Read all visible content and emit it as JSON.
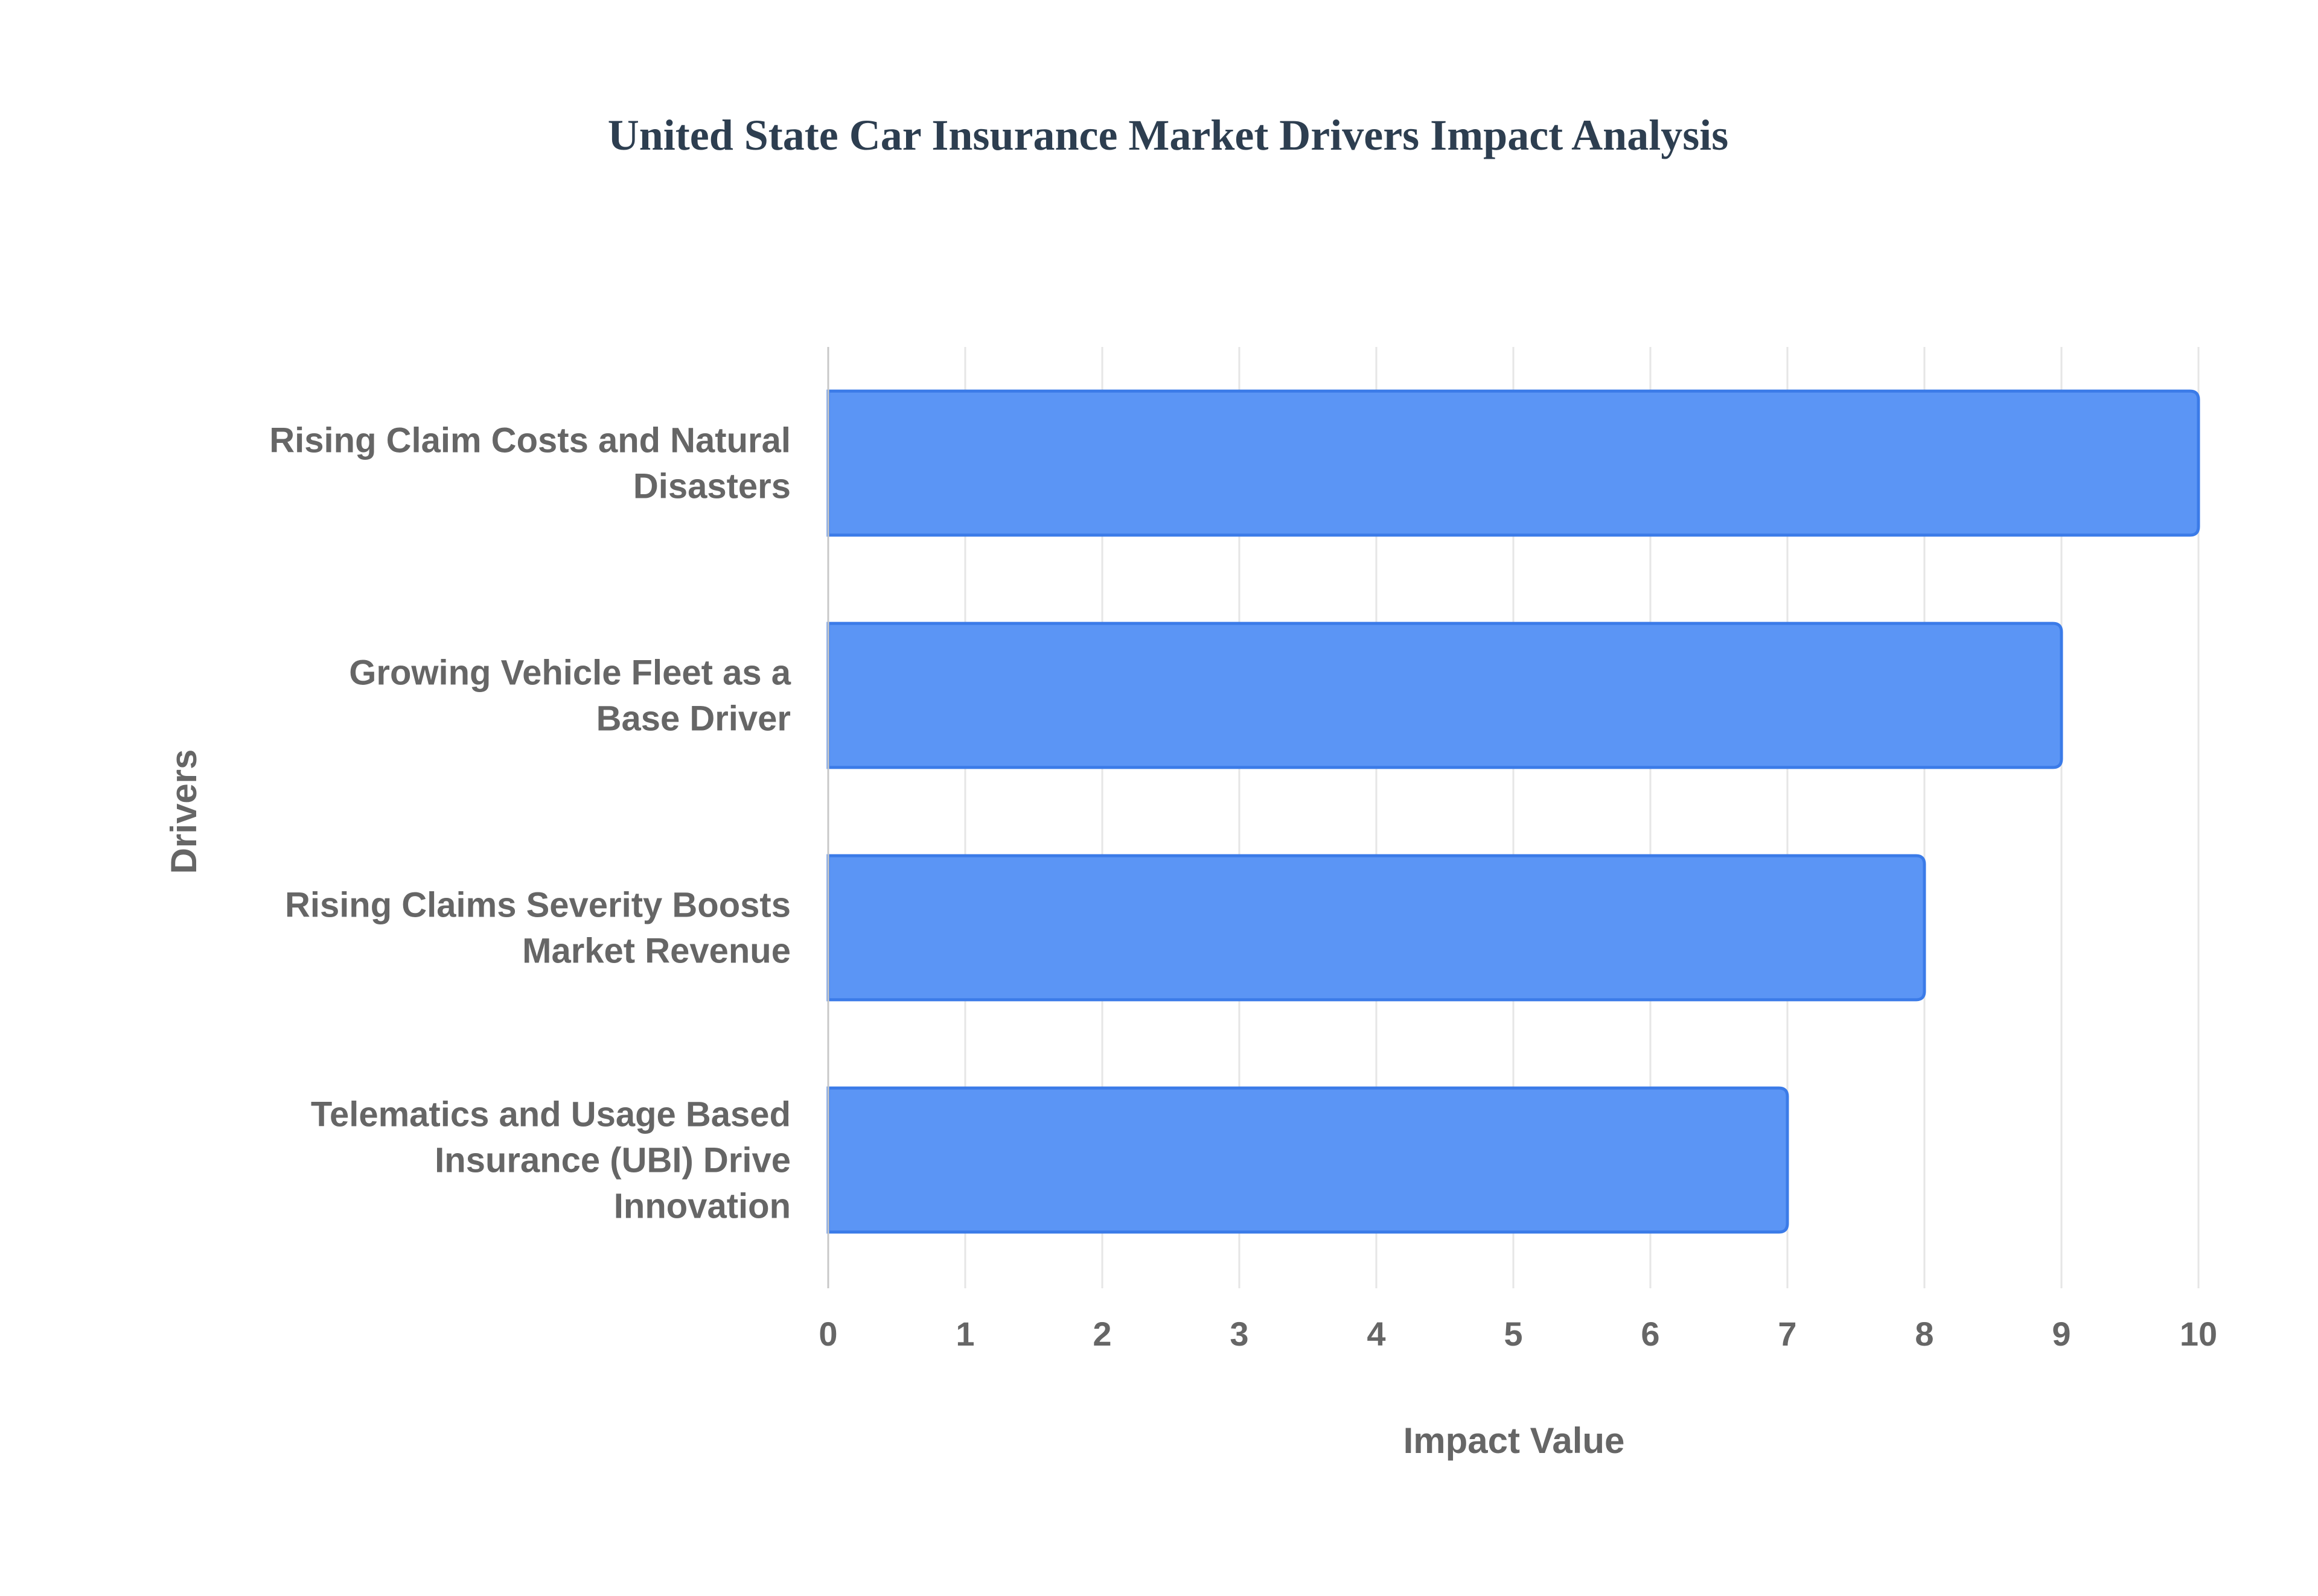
{
  "chart_data": {
    "type": "bar",
    "orientation": "horizontal",
    "title": "United State Car Insurance Market Drivers Impact Analysis",
    "xlabel": "Impact Value",
    "ylabel": "Drivers",
    "categories": [
      [
        "Rising Claim Costs and Natural",
        "Disasters"
      ],
      [
        "Growing Vehicle Fleet as a",
        "Base Driver"
      ],
      [
        "Rising Claims Severity Boosts",
        "Market Revenue"
      ],
      [
        "Telematics and Usage Based",
        "Insurance (UBI) Drive",
        "Innovation"
      ]
    ],
    "values": [
      10,
      9,
      8,
      7
    ],
    "xlim": [
      0,
      10
    ],
    "xticks": [
      "0",
      "1",
      "2",
      "3",
      "4",
      "5",
      "6",
      "7",
      "8",
      "9",
      "10"
    ],
    "grid": true,
    "legend": "none",
    "colors": {
      "bar_fill": "#5b95f5",
      "bar_stroke": "#3b7be8",
      "title": "#2d3e50",
      "text": "#666666",
      "grid": "#e6e6e6",
      "axis": "#c8c8c8"
    }
  }
}
